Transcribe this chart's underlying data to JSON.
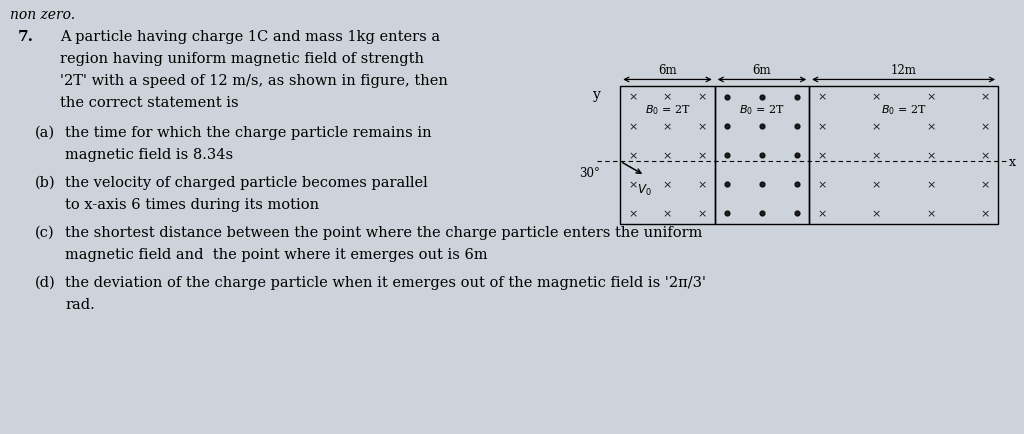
{
  "background_color": "#cdd3da",
  "question_number": "7.",
  "question_lines": [
    "A particle having charge 1C and mass 1kg enters a",
    "region having uniform magnetic field of strength",
    "'2T' with a speed of 12 m/s, as shown in figure, then",
    "the correct statement is"
  ],
  "options": [
    [
      "(a)",
      "the time for which the charge particle remains in",
      "magnetic field is 8.34s"
    ],
    [
      "(b)",
      "the velocity of charged particle becomes parallel",
      "to x-axis 6 times during its motion"
    ],
    [
      "(c)",
      "the shortest distance between the point where the charge particle enters the uniform",
      "magnetic field and  the point where it emerges out is 6m"
    ],
    [
      "(d)",
      "the deviation of the charge particle when it emerges out of the magnetic field is '2π/3'",
      "rad."
    ]
  ],
  "diagram": {
    "widths": [
      "6m",
      "6m",
      "12m"
    ],
    "regions": [
      "in",
      "out",
      "in"
    ],
    "region_labels": [
      "B₀ = 2T",
      "B₀ = 2T",
      "B₀ = 2T"
    ],
    "entry_angle": "30°",
    "v0_label": "V₀",
    "x_label": "x",
    "y_label": "y"
  },
  "top_text": "non zero."
}
